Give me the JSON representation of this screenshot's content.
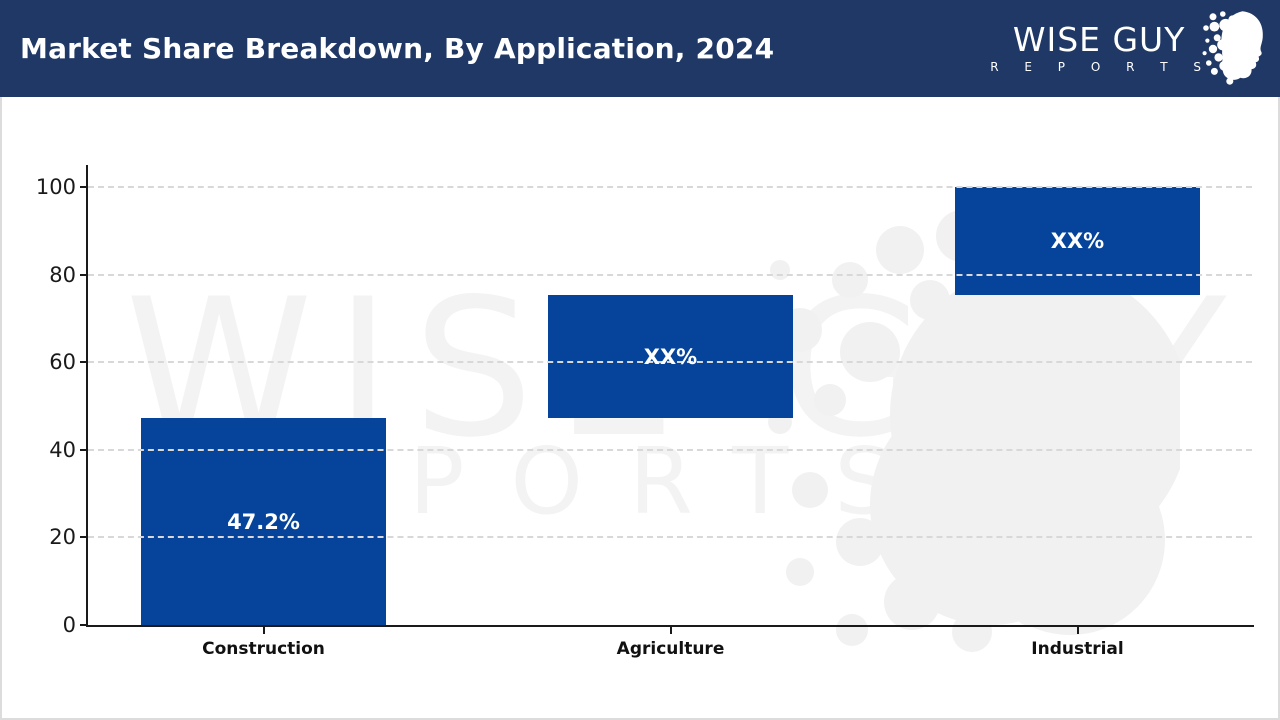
{
  "header": {
    "title": "Market Share Breakdown, By Application, 2024",
    "background": "#203865",
    "logo": {
      "brand_line1": "WISE GUY",
      "brand_line2": "R E P O R T S"
    }
  },
  "watermark": {
    "line1": "WISE GUY",
    "line2": "REPORTS"
  },
  "chart_data": {
    "type": "bar",
    "subtype": "floating-segment-breakdown",
    "title": "Market Share Breakdown, By Application, 2024",
    "categories": [
      "Construction",
      "Agriculture",
      "Industrial"
    ],
    "segments": [
      {
        "category": "Construction",
        "start": 0,
        "end": 47.2,
        "label": "47.2%"
      },
      {
        "category": "Agriculture",
        "start": 47.2,
        "end": 75.3,
        "label": "XX%"
      },
      {
        "category": "Industrial",
        "start": 75.3,
        "end": 100,
        "label": "XX%"
      }
    ],
    "xlabel": "",
    "ylabel": "",
    "ylim": [
      0,
      100
    ],
    "yticks": [
      0,
      20,
      40,
      60,
      80,
      100
    ],
    "grid": {
      "axis": "y",
      "style": "dashed",
      "color": "#d8d8d8",
      "on": true
    },
    "legend": null,
    "bar_color": "#05449a",
    "bar_label_color": "#ffffff",
    "axis_color": "#1a1a1a"
  }
}
